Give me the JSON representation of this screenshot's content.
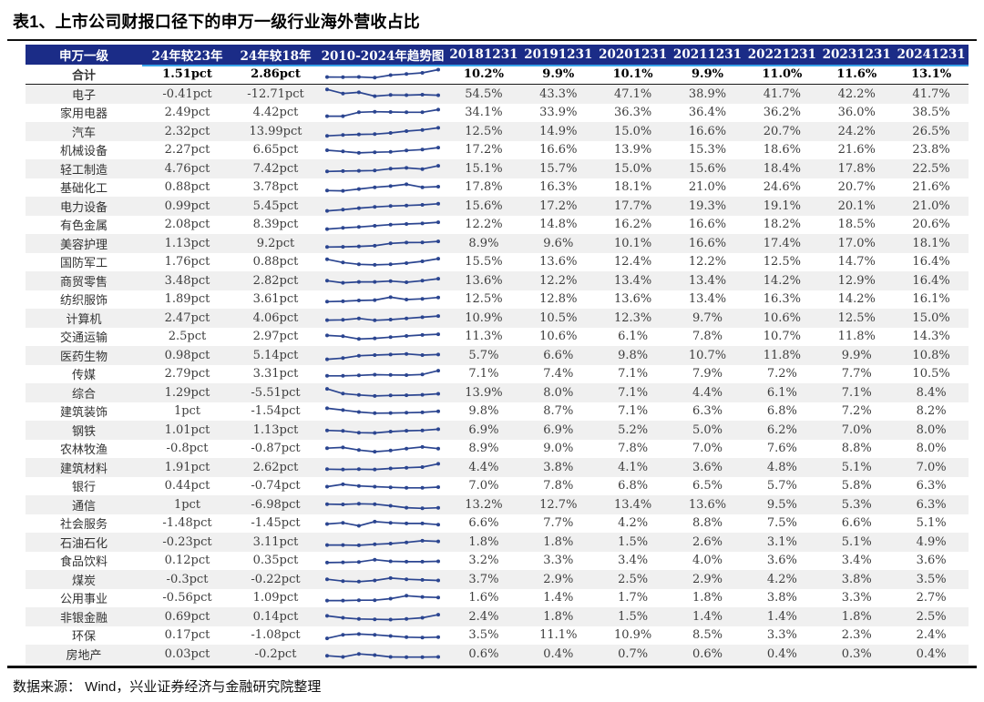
{
  "title": "表1、上市公司财报口径下的申万一级行业海外营收占比",
  "source_note": "数据来源：  Wind，兴业证券经济与金融研究院整理",
  "colors": {
    "header_bg": "#1B2C87",
    "header_text": "#FFFFFF",
    "accent_underline": "#38A3E9",
    "sparkline": "#2B4590",
    "row_alt": "#F0F0F0",
    "value_text": "#3D3D3D"
  },
  "chart_data": {
    "type": "table",
    "title": "上市公司财报口径下的申万一级行业海外营收占比",
    "columns": [
      "申万一级",
      "24年较23年",
      "24年较18年",
      "2010-2024年趋势图",
      "20181231",
      "20191231",
      "20201231",
      "20211231",
      "20221231",
      "20231231",
      "20241231"
    ],
    "total_row": {
      "name": "合计",
      "vs23": "1.51pct",
      "vs18": "2.86pct",
      "sparkline": [
        30,
        29,
        31,
        25,
        46,
        55,
        65,
        92
      ],
      "values": [
        "10.2%",
        "9.9%",
        "10.1%",
        "9.9%",
        "11.0%",
        "11.6%",
        "13.1%"
      ]
    },
    "rows": [
      {
        "name": "电子",
        "vs23": "-0.41pct",
        "vs18": "-12.71pct",
        "sparkline": [
          95,
          60,
          70,
          38,
          48,
          46,
          50,
          45
        ],
        "values": [
          "54.5%",
          "43.3%",
          "47.1%",
          "38.9%",
          "41.7%",
          "42.2%",
          "41.7%"
        ]
      },
      {
        "name": "家用电器",
        "vs23": "2.49pct",
        "vs18": "4.42pct",
        "sparkline": [
          22,
          22,
          55,
          60,
          58,
          55,
          55,
          78
        ],
        "values": [
          "34.1%",
          "33.9%",
          "36.3%",
          "36.4%",
          "36.2%",
          "36.0%",
          "38.5%"
        ]
      },
      {
        "name": "汽车",
        "vs23": "2.32pct",
        "vs18": "13.99pct",
        "sparkline": [
          18,
          25,
          30,
          32,
          42,
          58,
          68,
          85
        ],
        "values": [
          "12.5%",
          "14.9%",
          "15.0%",
          "16.6%",
          "20.7%",
          "24.2%",
          "26.5%"
        ]
      },
      {
        "name": "机械设备",
        "vs23": "2.27pct",
        "vs18": "6.65pct",
        "sparkline": [
          50,
          40,
          28,
          33,
          36,
          48,
          55,
          72
        ],
        "values": [
          "17.2%",
          "16.6%",
          "13.9%",
          "15.3%",
          "18.6%",
          "21.6%",
          "23.8%"
        ]
      },
      {
        "name": "轻工制造",
        "vs23": "4.76pct",
        "vs18": "7.42pct",
        "sparkline": [
          32,
          35,
          38,
          40,
          55,
          62,
          52,
          80
        ],
        "values": [
          "15.1%",
          "15.7%",
          "15.0%",
          "15.6%",
          "18.4%",
          "17.8%",
          "22.5%"
        ]
      },
      {
        "name": "基础化工",
        "vs23": "0.88pct",
        "vs18": "3.78pct",
        "sparkline": [
          25,
          22,
          38,
          52,
          62,
          78,
          52,
          58
        ],
        "values": [
          "17.8%",
          "16.3%",
          "18.1%",
          "21.0%",
          "24.6%",
          "20.7%",
          "21.6%"
        ]
      },
      {
        "name": "电力设备",
        "vs23": "0.99pct",
        "vs18": "5.45pct",
        "sparkline": [
          15,
          25,
          38,
          48,
          55,
          60,
          65,
          75
        ],
        "values": [
          "15.6%",
          "17.2%",
          "17.7%",
          "19.3%",
          "19.1%",
          "20.1%",
          "21.0%"
        ]
      },
      {
        "name": "有色金属",
        "vs23": "2.08pct",
        "vs18": "8.39pct",
        "sparkline": [
          15,
          25,
          32,
          42,
          52,
          58,
          62,
          72
        ],
        "values": [
          "12.2%",
          "14.8%",
          "16.2%",
          "16.6%",
          "18.2%",
          "18.5%",
          "20.6%"
        ]
      },
      {
        "name": "美容护理",
        "vs23": "1.13pct",
        "vs18": "9.2pct",
        "sparkline": [
          25,
          26,
          30,
          35,
          55,
          62,
          63,
          72
        ],
        "values": [
          "8.9%",
          "9.6%",
          "10.1%",
          "16.6%",
          "17.4%",
          "17.0%",
          "18.1%"
        ]
      },
      {
        "name": "国防军工",
        "vs23": "1.76pct",
        "vs18": "0.88pct",
        "sparkline": [
          75,
          48,
          32,
          28,
          32,
          42,
          58,
          80
        ],
        "values": [
          "15.5%",
          "13.6%",
          "12.4%",
          "12.2%",
          "12.5%",
          "14.7%",
          "16.4%"
        ]
      },
      {
        "name": "商贸零售",
        "vs23": "3.48pct",
        "vs18": "2.82pct",
        "sparkline": [
          55,
          38,
          45,
          45,
          52,
          42,
          55,
          72
        ],
        "values": [
          "13.6%",
          "12.2%",
          "13.4%",
          "13.4%",
          "14.2%",
          "12.9%",
          "16.4%"
        ]
      },
      {
        "name": "纺织服饰",
        "vs23": "1.89pct",
        "vs18": "3.61pct",
        "sparkline": [
          32,
          35,
          42,
          45,
          70,
          50,
          56,
          68
        ],
        "values": [
          "12.5%",
          "12.8%",
          "13.6%",
          "13.4%",
          "16.3%",
          "14.2%",
          "16.1%"
        ]
      },
      {
        "name": "计算机",
        "vs23": "2.47pct",
        "vs18": "4.06pct",
        "sparkline": [
          38,
          40,
          52,
          36,
          42,
          52,
          62,
          72
        ],
        "values": [
          "10.9%",
          "10.5%",
          "12.3%",
          "9.7%",
          "10.6%",
          "12.5%",
          "15.0%"
        ]
      },
      {
        "name": "交通运输",
        "vs23": "2.5pct",
        "vs18": "2.97pct",
        "sparkline": [
          62,
          55,
          32,
          38,
          48,
          58,
          66,
          72
        ],
        "values": [
          "11.3%",
          "10.6%",
          "6.1%",
          "7.8%",
          "10.7%",
          "11.8%",
          "14.3%"
        ]
      },
      {
        "name": "医药生物",
        "vs23": "0.98pct",
        "vs18": "5.14pct",
        "sparkline": [
          22,
          32,
          52,
          58,
          62,
          68,
          58,
          62
        ],
        "values": [
          "5.7%",
          "6.6%",
          "9.8%",
          "10.7%",
          "11.8%",
          "9.9%",
          "10.8%"
        ]
      },
      {
        "name": "传媒",
        "vs23": "2.79pct",
        "vs18": "3.31pct",
        "sparkline": [
          36,
          36,
          40,
          46,
          44,
          42,
          48,
          80
        ],
        "values": [
          "7.1%",
          "7.4%",
          "7.1%",
          "7.9%",
          "7.2%",
          "7.7%",
          "10.5%"
        ]
      },
      {
        "name": "综合",
        "vs23": "1.29pct",
        "vs18": "-5.51pct",
        "sparkline": [
          88,
          48,
          36,
          28,
          32,
          34,
          38,
          46
        ],
        "values": [
          "13.9%",
          "8.0%",
          "7.1%",
          "4.4%",
          "6.1%",
          "7.1%",
          "8.4%"
        ]
      },
      {
        "name": "建筑装饰",
        "vs23": "1pct",
        "vs18": "-1.54pct",
        "sparkline": [
          78,
          62,
          46,
          36,
          38,
          40,
          43,
          52
        ],
        "values": [
          "9.8%",
          "8.7%",
          "7.1%",
          "6.3%",
          "6.8%",
          "7.2%",
          "8.2%"
        ]
      },
      {
        "name": "钢铁",
        "vs23": "1.01pct",
        "vs18": "1.13pct",
        "sparkline": [
          52,
          48,
          33,
          31,
          42,
          49,
          52,
          62
        ],
        "values": [
          "6.9%",
          "6.9%",
          "5.2%",
          "5.0%",
          "6.2%",
          "7.0%",
          "8.0%"
        ]
      },
      {
        "name": "农林牧渔",
        "vs23": "-0.8pct",
        "vs18": "-0.87pct",
        "sparkline": [
          56,
          62,
          40,
          26,
          36,
          52,
          66,
          52
        ],
        "values": [
          "8.9%",
          "9.0%",
          "7.8%",
          "7.0%",
          "7.6%",
          "8.8%",
          "8.0%"
        ]
      },
      {
        "name": "建筑材料",
        "vs23": "1.91pct",
        "vs18": "2.62pct",
        "sparkline": [
          40,
          38,
          40,
          38,
          46,
          52,
          58,
          85
        ],
        "values": [
          "4.4%",
          "3.8%",
          "4.1%",
          "3.6%",
          "4.8%",
          "5.1%",
          "7.0%"
        ]
      },
      {
        "name": "银行",
        "vs23": "0.44pct",
        "vs18": "-0.74pct",
        "sparkline": [
          46,
          66,
          52,
          46,
          41,
          36,
          36,
          42
        ],
        "values": [
          "7.0%",
          "7.8%",
          "6.8%",
          "6.5%",
          "5.7%",
          "5.8%",
          "6.3%"
        ]
      },
      {
        "name": "通信",
        "vs23": "1pct",
        "vs18": "-6.98pct",
        "sparkline": [
          60,
          58,
          63,
          60,
          46,
          30,
          25,
          29
        ],
        "values": [
          "13.2%",
          "12.7%",
          "13.4%",
          "13.6%",
          "9.5%",
          "5.3%",
          "6.3%"
        ]
      },
      {
        "name": "社会服务",
        "vs23": "-1.48pct",
        "vs18": "-1.45pct",
        "sparkline": [
          46,
          56,
          31,
          66,
          56,
          51,
          51,
          41
        ],
        "values": [
          "6.6%",
          "7.7%",
          "4.2%",
          "8.8%",
          "7.5%",
          "6.6%",
          "5.1%"
        ]
      },
      {
        "name": "石油石化",
        "vs23": "-0.23pct",
        "vs18": "3.11pct",
        "sparkline": [
          30,
          30,
          28,
          36,
          42,
          52,
          66,
          61
        ],
        "values": [
          "1.8%",
          "1.8%",
          "1.5%",
          "2.6%",
          "3.1%",
          "5.1%",
          "4.9%"
        ]
      },
      {
        "name": "食品饮料",
        "vs23": "0.12pct",
        "vs18": "0.35pct",
        "sparkline": [
          35,
          38,
          41,
          60,
          46,
          43,
          43,
          46
        ],
        "values": [
          "3.2%",
          "3.3%",
          "3.4%",
          "4.0%",
          "3.6%",
          "3.4%",
          "3.6%"
        ]
      },
      {
        "name": "煤炭",
        "vs23": "-0.3pct",
        "vs18": "-0.22pct",
        "sparkline": [
          56,
          41,
          36,
          46,
          66,
          56,
          51,
          46
        ],
        "values": [
          "3.7%",
          "2.9%",
          "2.5%",
          "2.9%",
          "4.2%",
          "3.8%",
          "3.5%"
        ]
      },
      {
        "name": "公用事业",
        "vs23": "-0.56pct",
        "vs18": "1.09pct",
        "sparkline": [
          30,
          30,
          33,
          33,
          46,
          71,
          61,
          56
        ],
        "values": [
          "1.6%",
          "1.4%",
          "1.7%",
          "1.8%",
          "3.8%",
          "3.3%",
          "2.7%"
        ]
      },
      {
        "name": "非银金融",
        "vs23": "0.69pct",
        "vs18": "0.14pct",
        "sparkline": [
          62,
          46,
          36,
          33,
          31,
          36,
          46,
          72
        ],
        "values": [
          "2.4%",
          "1.8%",
          "1.5%",
          "1.4%",
          "1.4%",
          "1.8%",
          "2.5%"
        ]
      },
      {
        "name": "环保",
        "vs23": "0.17pct",
        "vs18": "-1.08pct",
        "sparkline": [
          26,
          56,
          62,
          56,
          46,
          36,
          33,
          36
        ],
        "values": [
          "3.5%",
          "11.1%",
          "10.9%",
          "8.5%",
          "3.3%",
          "2.3%",
          "2.4%"
        ]
      },
      {
        "name": "房地产",
        "vs23": "0.03pct",
        "vs18": "-0.2pct",
        "sparkline": [
          41,
          31,
          56,
          46,
          31,
          29,
          29,
          31
        ],
        "values": [
          "0.6%",
          "0.4%",
          "0.7%",
          "0.6%",
          "0.4%",
          "0.3%",
          "0.4%"
        ]
      }
    ]
  }
}
